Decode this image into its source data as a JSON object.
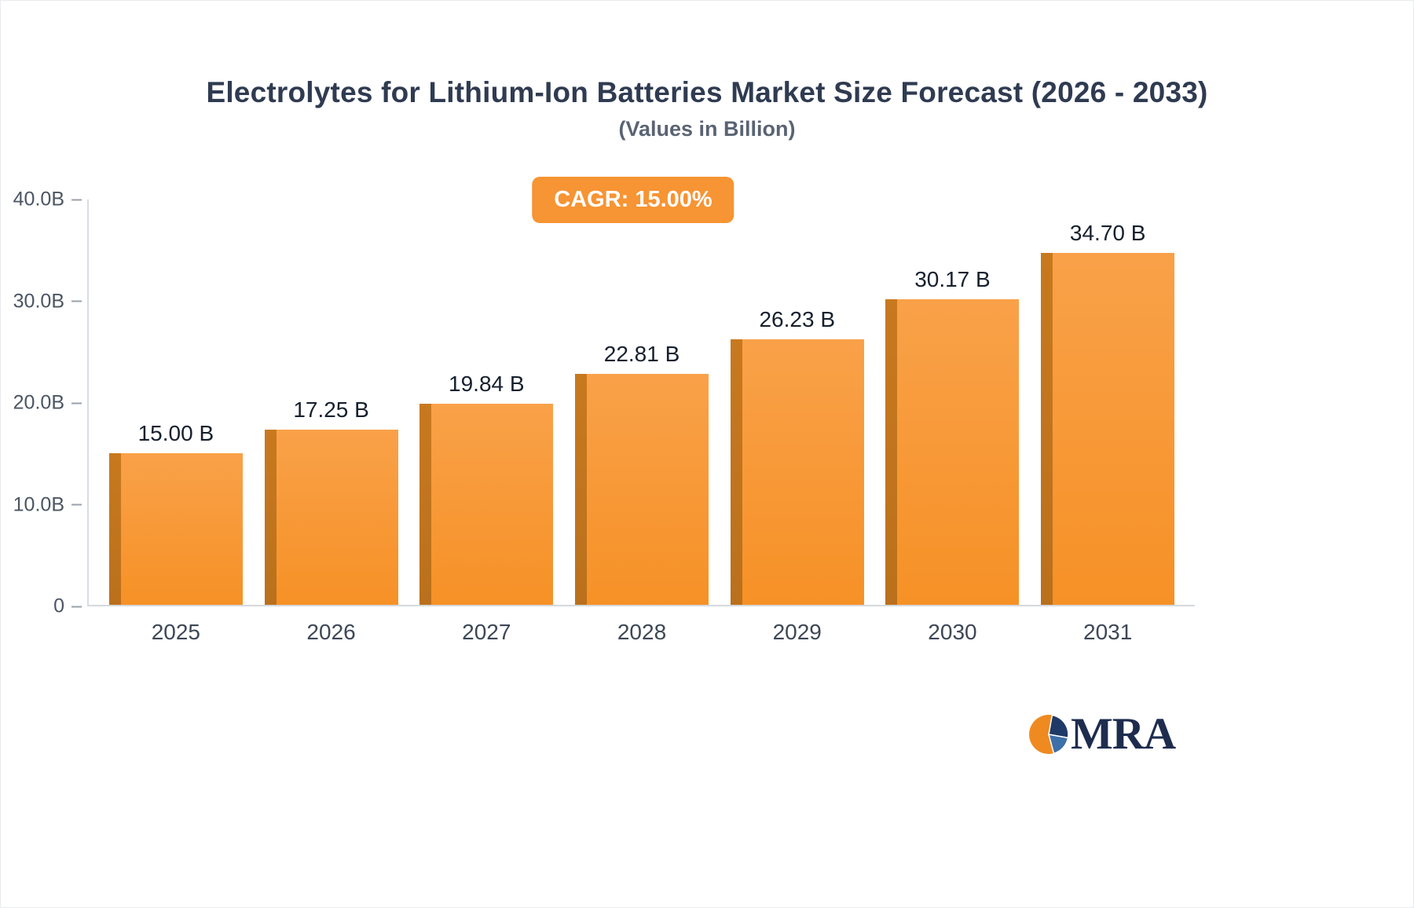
{
  "header": {
    "title": "Electrolytes for Lithium-Ion Batteries Market Size Forecast (2026 - 2033)",
    "subtitle": "(Values in Billion)",
    "cagr_badge": "CAGR: 15.00%",
    "badge_color": "#F79433"
  },
  "chart_data": {
    "type": "bar",
    "categories": [
      "2025",
      "2026",
      "2027",
      "2028",
      "2029",
      "2030",
      "2031"
    ],
    "values": [
      15.0,
      17.25,
      19.84,
      22.81,
      26.23,
      30.17,
      34.7
    ],
    "value_labels": [
      "15.00 B",
      "17.25 B",
      "19.84 B",
      "22.81 B",
      "26.23 B",
      "30.17 B",
      "34.70 B"
    ],
    "title": "Electrolytes for Lithium-Ion Batteries Market Size Forecast (2026 - 2033)",
    "subtitle": "(Values in Billion)",
    "xlabel": "",
    "ylabel": "",
    "ylim": [
      0,
      40
    ],
    "ytick_labels": [
      "40.0B",
      "30.0B",
      "20.0B",
      "10.0B",
      "0"
    ],
    "grid": false,
    "legend": false,
    "bar_color": "#F8993B",
    "bar_side_color": "#C1741F"
  },
  "logo": {
    "text": "MRA"
  }
}
